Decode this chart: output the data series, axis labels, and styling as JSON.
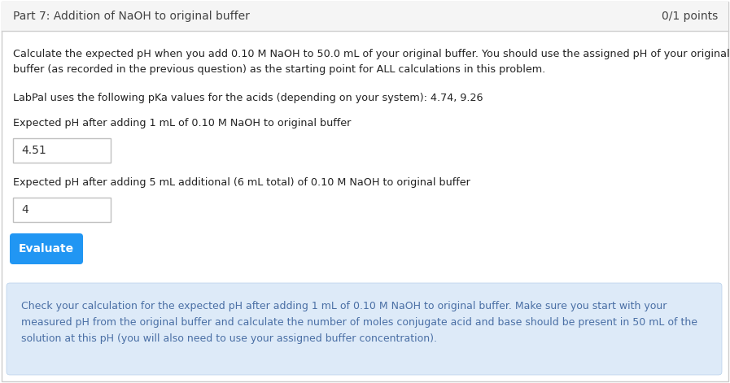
{
  "title": "Part 7: Addition of NaOH to original buffer",
  "points": "0/1 points",
  "body_text_1": "Calculate the expected pH when you add 0.10 M NaOH to 50.0 mL of your original buffer. You should use the assigned pH of your original",
  "body_text_2": "buffer (as recorded in the previous question) as the starting point for ALL calculations in this problem.",
  "pka_text": "LabPal uses the following pKa values for the acids (depending on your system): 4.74, 9.26",
  "label1": "Expected pH after adding 1 mL of 0.10 M NaOH to original buffer",
  "input1": "4.51",
  "label2": "Expected pH after adding 5 mL additional (6 mL total) of 0.10 M NaOH to original buffer",
  "input2": "4",
  "button_text": "Evaluate",
  "feedback_text_1": "Check your calculation for the expected pH after adding 1 mL of 0.10 M NaOH to original buffer. Make sure you start with your",
  "feedback_text_2": "measured pH from the original buffer and calculate the number of moles conjugate acid and base should be present in 50 mL of the",
  "feedback_text_3": "solution at this pH (you will also need to use your assigned buffer concentration).",
  "bg_color": "#ffffff",
  "header_bg": "#f5f5f5",
  "header_border": "#d0d0d0",
  "header_text_color": "#444444",
  "body_text_color": "#222222",
  "input_border": "#c0c0c0",
  "input_bg": "#ffffff",
  "input_text_color": "#333333",
  "button_bg": "#2196F3",
  "button_text_color": "#ffffff",
  "feedback_bg": "#ddeaf8",
  "feedback_text_color": "#4a6fa5",
  "outer_border": "#cccccc"
}
